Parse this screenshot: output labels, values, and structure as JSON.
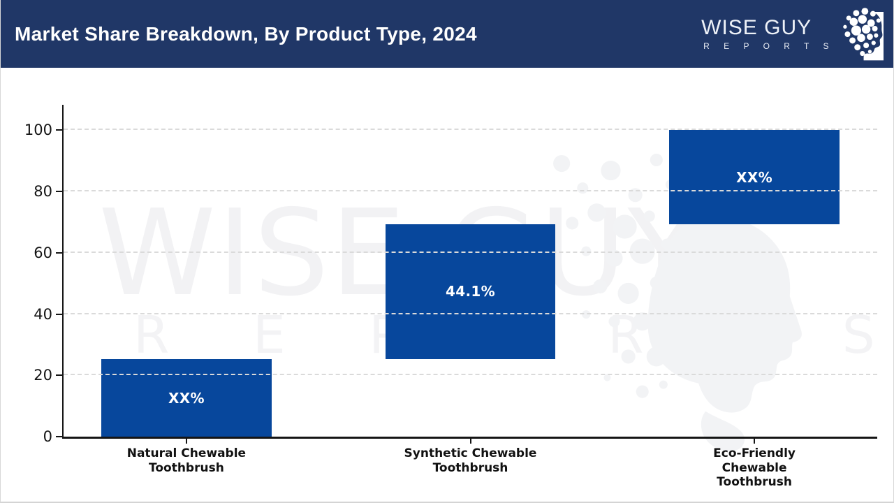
{
  "header": {
    "title": "Market Share Breakdown, By Product Type, 2024",
    "logo": {
      "name": "WISE GUY",
      "subtitle": "R E P O R T S"
    }
  },
  "watermark": {
    "line1": "WISE GUY",
    "line2": "R E P O R T S"
  },
  "colors": {
    "header_bg": "#203767",
    "bar": "#07479c",
    "bar_label": "#ffffff",
    "gridline": "#dadada",
    "axis": "#151515",
    "watermark": "#f2f3f5"
  },
  "chart_data": {
    "type": "bar",
    "subtype": "waterfall-floating-segments",
    "title": "Market Share Breakdown, By Product Type, 2024",
    "categories": [
      "Natural Chewable\nToothbrush",
      "Synthetic Chewable\nToothbrush",
      "Eco-Friendly\nChewable\nToothbrush"
    ],
    "segments": [
      {
        "start": 0,
        "end": 25.3,
        "label": "XX%"
      },
      {
        "start": 25.3,
        "end": 69.4,
        "label": "44.1%"
      },
      {
        "start": 69.4,
        "end": 100,
        "label": "XX%"
      }
    ],
    "yticks": [
      0,
      20,
      40,
      60,
      80,
      100
    ],
    "ylim": [
      0,
      108.3
    ],
    "xlabel": "",
    "ylabel": "",
    "grid": "horizontal-dashed, drawn over bars",
    "legend": "none",
    "bar_color": "#07479c",
    "label_color": "#ffffff"
  }
}
